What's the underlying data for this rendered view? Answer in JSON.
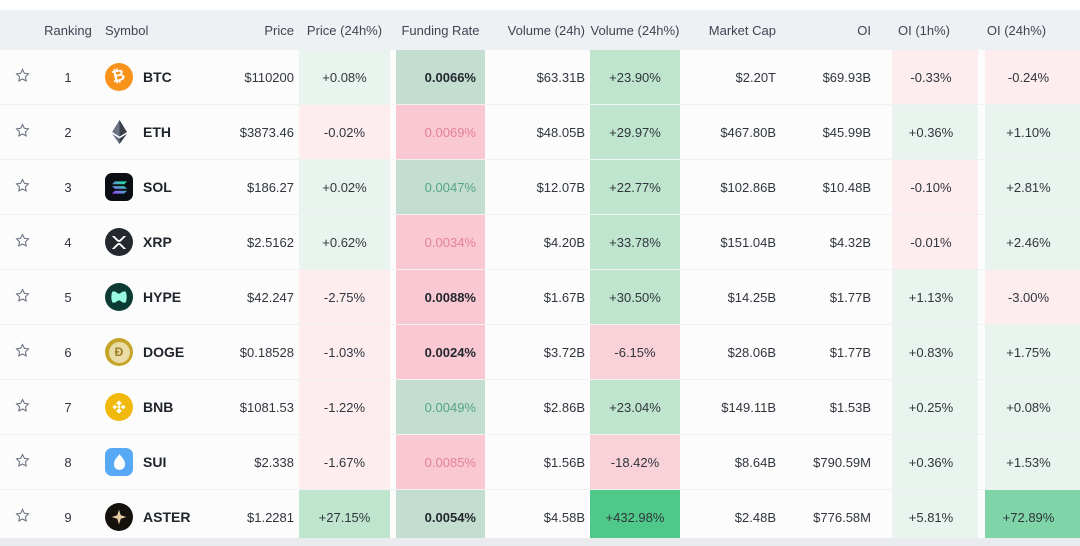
{
  "table": {
    "columns": [
      {
        "key": "rank",
        "label": "Ranking"
      },
      {
        "key": "symbol",
        "label": "Symbol"
      },
      {
        "key": "price",
        "label": "Price"
      },
      {
        "key": "price24",
        "label": "Price (24h%)"
      },
      {
        "key": "funding",
        "label": "Funding Rate"
      },
      {
        "key": "vol",
        "label": "Volume (24h)"
      },
      {
        "key": "vol24",
        "label": "Volume (24h%)"
      },
      {
        "key": "mcap",
        "label": "Market Cap"
      },
      {
        "key": "oi",
        "label": "OI"
      },
      {
        "key": "oi1",
        "label": "OI (1h%)"
      },
      {
        "key": "oi24",
        "label": "OI (24h%)"
      }
    ],
    "rows": [
      {
        "rank": "1",
        "symbol": "BTC",
        "icon": "btc",
        "price": "$110200",
        "price24": {
          "text": "+0.08%",
          "tier": "g0"
        },
        "funding": {
          "text": "0.0066%",
          "bg": "fgreen",
          "fg": "dark"
        },
        "vol": "$63.31B",
        "vol24": {
          "text": "+23.90%",
          "tier": "g1"
        },
        "mcap": "$2.20T",
        "oi": "$69.93B",
        "oi1": {
          "text": "-0.33%",
          "tier": "r0"
        },
        "oi24": {
          "text": "-0.24%",
          "tier": "r0"
        }
      },
      {
        "rank": "2",
        "symbol": "ETH",
        "icon": "eth",
        "price": "$3873.46",
        "price24": {
          "text": "-0.02%",
          "tier": "r0"
        },
        "funding": {
          "text": "0.0069%",
          "bg": "fpink",
          "fg": "red"
        },
        "vol": "$48.05B",
        "vol24": {
          "text": "+29.97%",
          "tier": "g1"
        },
        "mcap": "$467.80B",
        "oi": "$45.99B",
        "oi1": {
          "text": "+0.36%",
          "tier": "g0"
        },
        "oi24": {
          "text": "+1.10%",
          "tier": "g0"
        }
      },
      {
        "rank": "3",
        "symbol": "SOL",
        "icon": "sol",
        "price": "$186.27",
        "price24": {
          "text": "+0.02%",
          "tier": "g0"
        },
        "funding": {
          "text": "0.0047%",
          "bg": "fgreen",
          "fg": "green"
        },
        "vol": "$12.07B",
        "vol24": {
          "text": "+22.77%",
          "tier": "g1"
        },
        "mcap": "$102.86B",
        "oi": "$10.48B",
        "oi1": {
          "text": "-0.10%",
          "tier": "r0"
        },
        "oi24": {
          "text": "+2.81%",
          "tier": "g0"
        }
      },
      {
        "rank": "4",
        "symbol": "XRP",
        "icon": "xrp",
        "price": "$2.5162",
        "price24": {
          "text": "+0.62%",
          "tier": "g0"
        },
        "funding": {
          "text": "0.0034%",
          "bg": "fpink",
          "fg": "red"
        },
        "vol": "$4.20B",
        "vol24": {
          "text": "+33.78%",
          "tier": "g1"
        },
        "mcap": "$151.04B",
        "oi": "$4.32B",
        "oi1": {
          "text": "-0.01%",
          "tier": "r0"
        },
        "oi24": {
          "text": "+2.46%",
          "tier": "g0"
        }
      },
      {
        "rank": "5",
        "symbol": "HYPE",
        "icon": "hype",
        "price": "$42.247",
        "price24": {
          "text": "-2.75%",
          "tier": "r0"
        },
        "funding": {
          "text": "0.0088%",
          "bg": "fpink",
          "fg": "dark"
        },
        "vol": "$1.67B",
        "vol24": {
          "text": "+30.50%",
          "tier": "g1"
        },
        "mcap": "$14.25B",
        "oi": "$1.77B",
        "oi1": {
          "text": "+1.13%",
          "tier": "g0"
        },
        "oi24": {
          "text": "-3.00%",
          "tier": "r0"
        }
      },
      {
        "rank": "6",
        "symbol": "DOGE",
        "icon": "doge",
        "price": "$0.18528",
        "price24": {
          "text": "-1.03%",
          "tier": "r0"
        },
        "funding": {
          "text": "0.0024%",
          "bg": "fpink",
          "fg": "dark"
        },
        "vol": "$3.72B",
        "vol24": {
          "text": "-6.15%",
          "tier": "r1"
        },
        "mcap": "$28.06B",
        "oi": "$1.77B",
        "oi1": {
          "text": "+0.83%",
          "tier": "g0"
        },
        "oi24": {
          "text": "+1.75%",
          "tier": "g0"
        }
      },
      {
        "rank": "7",
        "symbol": "BNB",
        "icon": "bnb",
        "price": "$1081.53",
        "price24": {
          "text": "-1.22%",
          "tier": "r0"
        },
        "funding": {
          "text": "0.0049%",
          "bg": "fgreen",
          "fg": "green"
        },
        "vol": "$2.86B",
        "vol24": {
          "text": "+23.04%",
          "tier": "g1"
        },
        "mcap": "$149.11B",
        "oi": "$1.53B",
        "oi1": {
          "text": "+0.25%",
          "tier": "g0"
        },
        "oi24": {
          "text": "+0.08%",
          "tier": "g0"
        }
      },
      {
        "rank": "8",
        "symbol": "SUI",
        "icon": "sui",
        "price": "$2.338",
        "price24": {
          "text": "-1.67%",
          "tier": "r0"
        },
        "funding": {
          "text": "0.0085%",
          "bg": "fpink",
          "fg": "red"
        },
        "vol": "$1.56B",
        "vol24": {
          "text": "-18.42%",
          "tier": "r1"
        },
        "mcap": "$8.64B",
        "oi": "$790.59M",
        "oi1": {
          "text": "+0.36%",
          "tier": "g0"
        },
        "oi24": {
          "text": "+1.53%",
          "tier": "g0"
        }
      },
      {
        "rank": "9",
        "symbol": "ASTER",
        "icon": "aster",
        "price": "$1.2281",
        "price24": {
          "text": "+27.15%",
          "tier": "g1"
        },
        "funding": {
          "text": "0.0054%",
          "bg": "fgreen",
          "fg": "dark"
        },
        "vol": "$4.58B",
        "vol24": {
          "text": "+432.98%",
          "tier": "g3"
        },
        "mcap": "$2.48B",
        "oi": "$776.58M",
        "oi1": {
          "text": "+5.81%",
          "tier": "g0"
        },
        "oi24": {
          "text": "+72.89%",
          "tier": "g2"
        }
      }
    ]
  },
  "icons": {
    "row_action": "star-icon",
    "coins": [
      "btc-icon",
      "eth-icon",
      "sol-icon",
      "xrp-icon",
      "hype-icon",
      "doge-icon",
      "bnb-icon",
      "sui-icon",
      "aster-icon"
    ]
  },
  "colors": {
    "header_bg": "#eef1f4",
    "header_text": "#3e4551",
    "row_bg": "#fcfcfd",
    "row_border": "#eff1f3",
    "bottom_strip": "#e9ebee",
    "text_primary": "#30353d",
    "star": "#6a7180",
    "tiers": {
      "g0": "#e9f4ee",
      "g1": "#bfe5cf",
      "g2": "#7fd5a8",
      "g3": "#4fc989",
      "r0": "#fdedef",
      "r1": "#f8d2d8",
      "fgreen": "#c3ddd1",
      "fpink": "#f9c8d2"
    },
    "funding_text": {
      "dark": "#23272e",
      "green": "#55a389",
      "red": "#e4809a"
    },
    "coin": {
      "btc": "#f7931a",
      "eth_dark": "#49505e",
      "hype_bg": "#0c3b33",
      "hype_fg": "#97fce1",
      "doge_outer": "#c5a428",
      "doge_inner": "#e9dca6",
      "bnb": "#f0b90b",
      "sui": "#57a8f5",
      "aster_fg": "#e7cda4"
    }
  }
}
